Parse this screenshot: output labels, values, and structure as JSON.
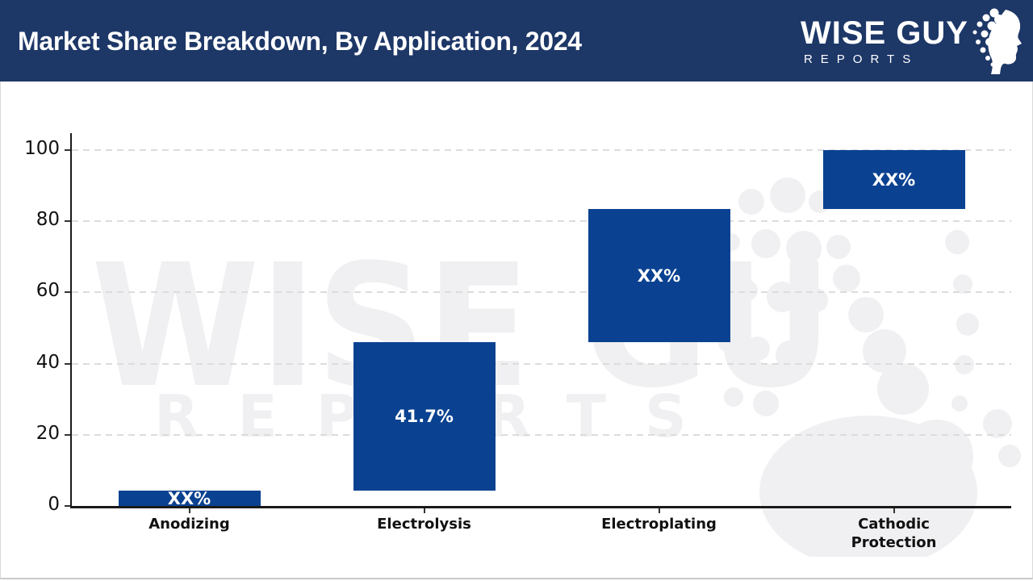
{
  "header": {
    "title": "Market Share Breakdown, By Application, 2024",
    "logo": {
      "wordmark": "WISE GUY",
      "subtitle": "REPORTS"
    }
  },
  "watermark": {
    "wordmark": "WISE GU",
    "subtitle": "REPORTS"
  },
  "colors": {
    "header_bg": "#1d3767",
    "bar": "#0a4291",
    "bar_label": "#ffffff",
    "grid": "#dcdcdc",
    "axis": "#1a1a1a",
    "watermark": "#f0f0f2"
  },
  "chart_data": {
    "type": "bar",
    "subtype": "floating-waterfall",
    "title": "Market Share Breakdown, By Application, 2024",
    "categories": [
      "Anodizing",
      "Electrolysis",
      "Electroplating",
      "Cathodic Protection"
    ],
    "segments": [
      {
        "category": "Anodizing",
        "start": 0,
        "end": 4.3,
        "label": "XX%"
      },
      {
        "category": "Electrolysis",
        "start": 4.3,
        "end": 46,
        "label": "41.7%"
      },
      {
        "category": "Electroplating",
        "start": 46,
        "end": 83.4,
        "label": "XX%"
      },
      {
        "category": "Cathodic Protection",
        "start": 83.4,
        "end": 100,
        "label": "XX%"
      }
    ],
    "xlabel": "",
    "ylabel": "",
    "ylim": [
      0,
      100
    ],
    "yticks": [
      0,
      20,
      40,
      60,
      80,
      100
    ],
    "grid": "horizontal-dashed",
    "legend": "none"
  }
}
